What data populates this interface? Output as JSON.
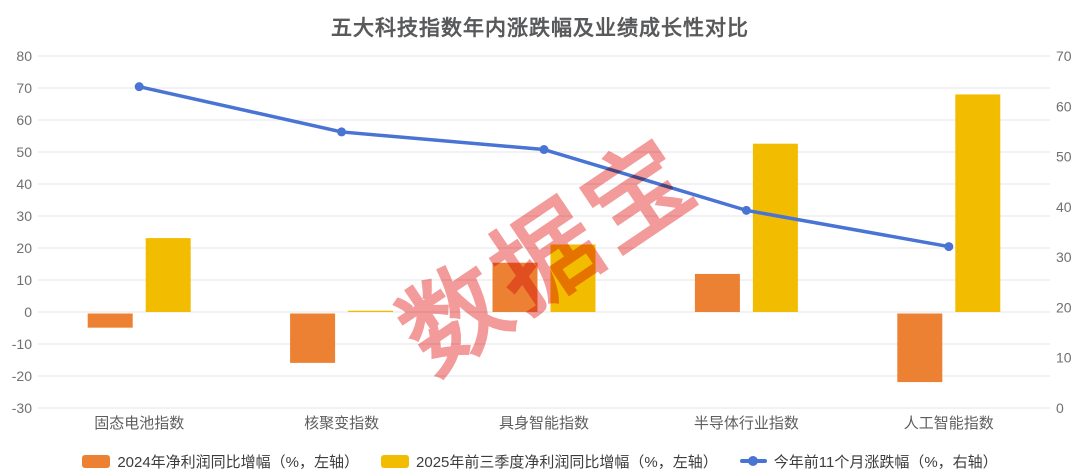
{
  "title": "五大科技指数年内涨跌幅及业绩成长性对比",
  "watermark": "数据宝",
  "colors": {
    "bar_2024": "#ED8133",
    "bar_2025": "#F2BD00",
    "line": "#4A74D4",
    "grid": "#E6E6E6",
    "axis_label": "#707070",
    "category_label": "#5E5E5E",
    "title_text": "#58595B",
    "legend_text": "#3C3C3C",
    "watermark_red": "#F07D7D",
    "background": "#FFFFFF"
  },
  "chart_data": {
    "type": "bar+line combo",
    "title": "五大科技指数年内涨跌幅及业绩成长性对比",
    "categories": [
      "固态电池指数",
      "核聚变指数",
      "具身智能指数",
      "半导体行业指数",
      "人工智能指数"
    ],
    "series": [
      {
        "name": "2024年净利润同比增幅（%，左轴）",
        "type": "bar",
        "axis": "left",
        "color_key": "bar_2024",
        "values": [
          -4.9,
          -15.9,
          15.4,
          11.9,
          -21.9
        ]
      },
      {
        "name": "2025年前三季度净利润同比增幅（%，左轴）",
        "type": "bar",
        "axis": "left",
        "color_key": "bar_2025",
        "values": [
          23.1,
          0.4,
          21.1,
          52.6,
          68.0
        ]
      },
      {
        "name": "今年前11个月涨跌幅（%，右轴）",
        "type": "line",
        "axis": "right",
        "color_key": "line",
        "values": [
          63.9,
          54.9,
          51.4,
          39.3,
          32.1
        ]
      }
    ],
    "left_axis": {
      "min": -30,
      "max": 80,
      "step": 10,
      "ticks": [
        80,
        70,
        60,
        50,
        40,
        30,
        20,
        10,
        0,
        -10,
        -20,
        -30
      ]
    },
    "right_axis": {
      "min": 0,
      "max": 70,
      "step": 10,
      "ticks": [
        70,
        60,
        50,
        40,
        30,
        20,
        10,
        0
      ]
    },
    "grid": true,
    "legend_position": "bottom"
  }
}
